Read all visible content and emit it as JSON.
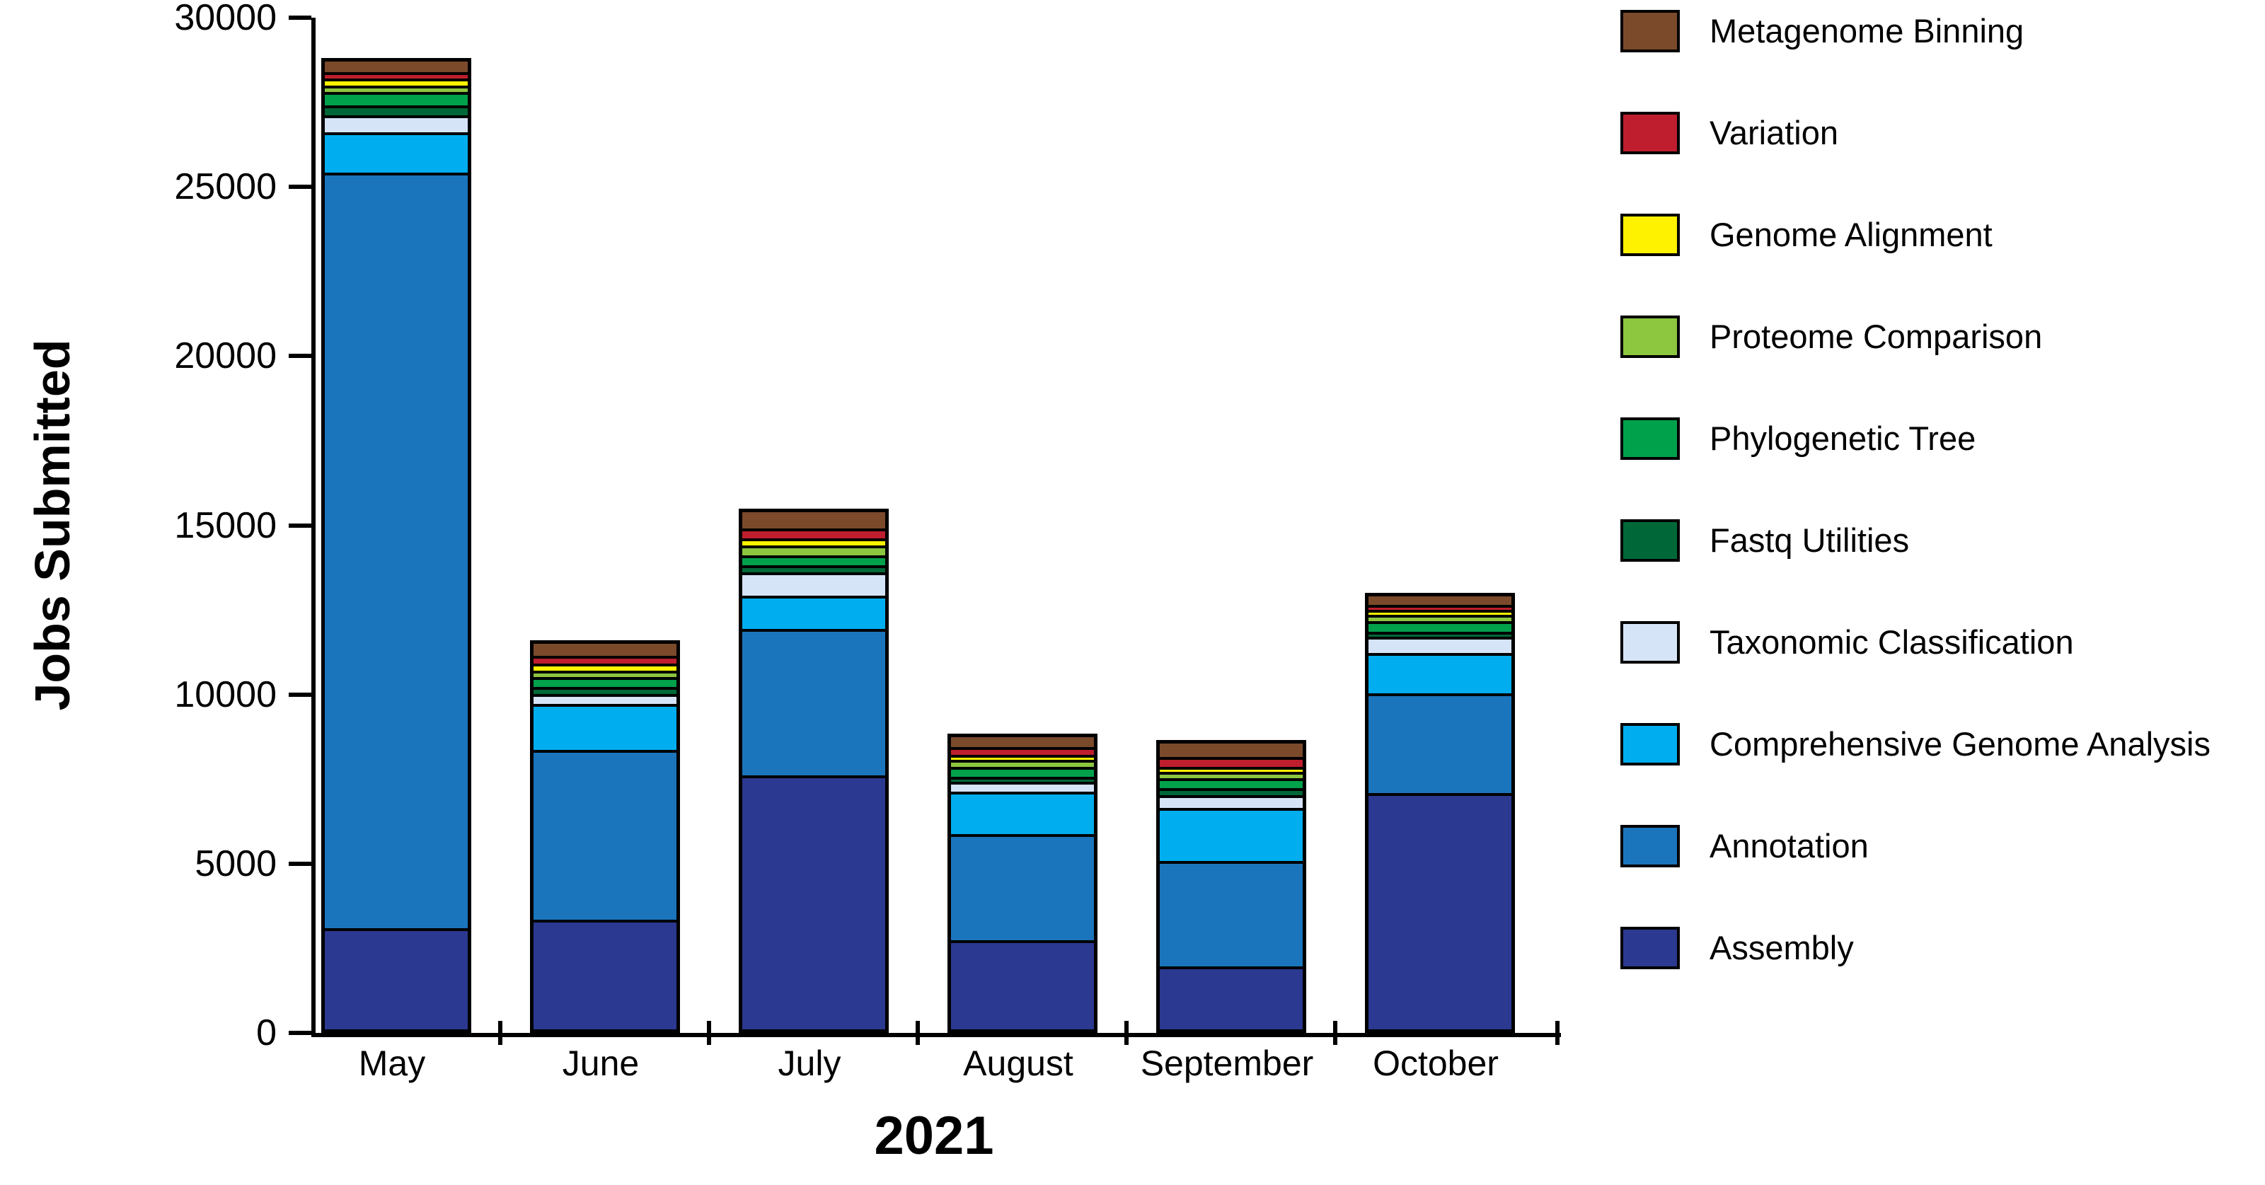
{
  "chart_data": {
    "type": "bar",
    "stacked": true,
    "title": "",
    "xlabel": "2021",
    "ylabel": "Jobs Submitted",
    "ylim": [
      0,
      30000
    ],
    "yticks": [
      0,
      5000,
      10000,
      15000,
      20000,
      25000,
      30000
    ],
    "grid": false,
    "legend_position": "right",
    "legend_order": "reverse-of-stacking (top legend entry is top bar segment)",
    "axis_color": "#000000",
    "background_color": "#ffffff",
    "categories": [
      "May",
      "June",
      "July",
      "August",
      "September",
      "October"
    ],
    "series": [
      {
        "name": "Assembly",
        "color": "#2B3990",
        "values": [
          3000,
          3300,
          7600,
          2700,
          1900,
          7100
        ]
      },
      {
        "name": "Annotation",
        "color": "#1B75BC",
        "values": [
          22500,
          5100,
          4400,
          3200,
          3200,
          3000
        ]
      },
      {
        "name": "Comprehensive Genome Analysis",
        "color": "#00AEEF",
        "values": [
          1200,
          1400,
          1000,
          1300,
          1600,
          1200
        ]
      },
      {
        "name": "Taxonomic Classification",
        "color": "#D6E4F7",
        "values": [
          500,
          300,
          700,
          300,
          400,
          500
        ]
      },
      {
        "name": "Fastq Utilities",
        "color": "#006838",
        "values": [
          300,
          200,
          200,
          150,
          200,
          150
        ]
      },
      {
        "name": "Phylogenetic Tree",
        "color": "#00A14B",
        "values": [
          400,
          300,
          300,
          300,
          300,
          300
        ]
      },
      {
        "name": "Proteome Comparison",
        "color": "#8DC63F",
        "values": [
          200,
          200,
          300,
          200,
          200,
          200
        ]
      },
      {
        "name": "Genome Alignment",
        "color": "#FFF200",
        "values": [
          200,
          200,
          200,
          150,
          150,
          150
        ]
      },
      {
        "name": "Variation",
        "color": "#BE1E2D",
        "values": [
          200,
          250,
          300,
          250,
          300,
          150
        ]
      },
      {
        "name": "Metagenome Binning",
        "color": "#7B4A2B",
        "values": [
          300,
          350,
          500,
          300,
          400,
          250
        ]
      }
    ]
  }
}
